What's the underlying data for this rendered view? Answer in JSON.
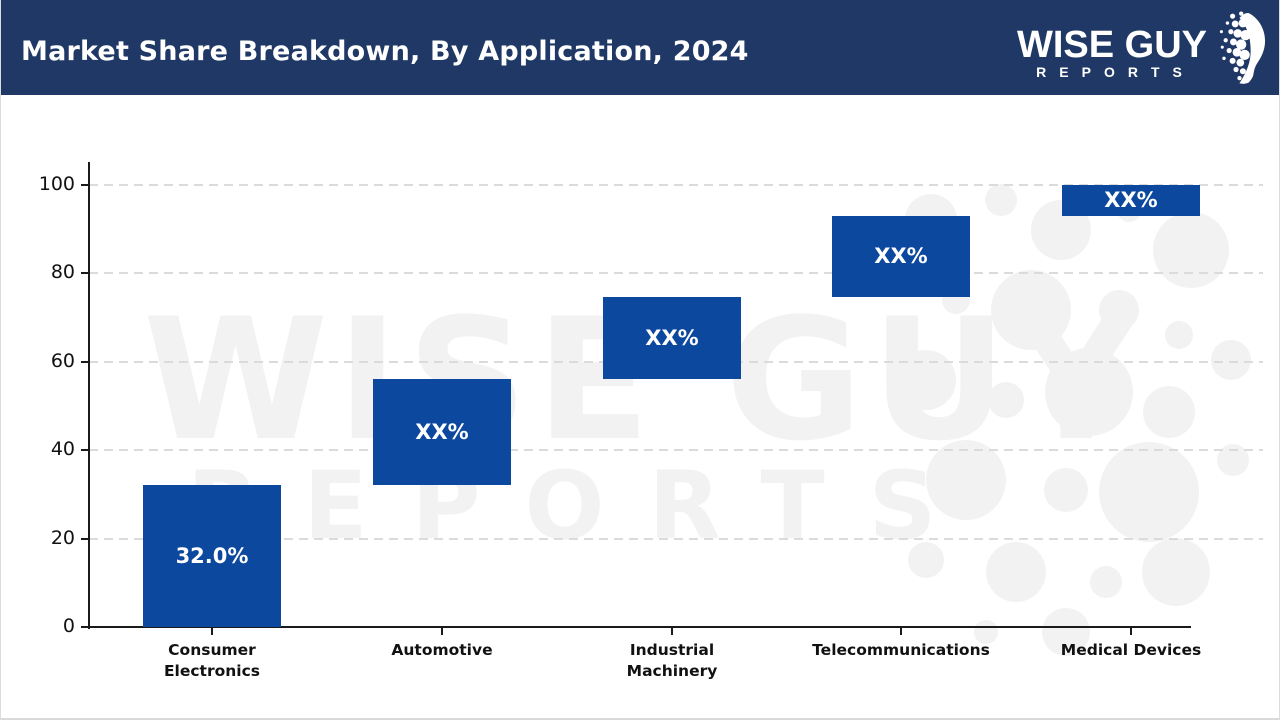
{
  "header": {
    "title": "Market Share Breakdown, By Application, 2024",
    "logo": {
      "line1": "WISE GUY",
      "line2": "REPORTS"
    }
  },
  "watermark": {
    "line1": "WISE GUY",
    "line2": "REPORTS"
  },
  "colors": {
    "header_bg": "#1F3865",
    "bar": "#0C489E",
    "bar_label": "#FFFFFF",
    "grid": "#DBDBDB",
    "axis": "#1A1A1A",
    "watermark": "#F2F2F2",
    "title_text": "#FFFFFF"
  },
  "chart_data": {
    "type": "bar",
    "subtype": "waterfall",
    "title": "Market Share Breakdown, By Application, 2024",
    "categories": [
      "Consumer Electronics",
      "Automotive",
      "Industrial Machinery",
      "Telecommunications",
      "Medical Devices"
    ],
    "categories_lines": [
      "Consumer\nElectronics",
      "Automotive",
      "Industrial\nMachinery",
      "Telecommunications",
      "Medical Devices"
    ],
    "segments": [
      {
        "category": "Consumer Electronics",
        "start": 0,
        "end": 32,
        "size": 32,
        "label": "32.0%"
      },
      {
        "category": "Automotive",
        "start": 32,
        "end": 56,
        "size": 24,
        "label": "XX%"
      },
      {
        "category": "Industrial Machinery",
        "start": 56,
        "end": 74.5,
        "size": 18.5,
        "label": "XX%"
      },
      {
        "category": "Telecommunications",
        "start": 74.5,
        "end": 93,
        "size": 18.5,
        "label": "XX%"
      },
      {
        "category": "Medical Devices",
        "start": 93,
        "end": 100,
        "size": 7,
        "label": "XX%"
      }
    ],
    "yticks": [
      0,
      20,
      40,
      60,
      80,
      100
    ],
    "ylim": [
      0,
      105
    ],
    "xlabel": "",
    "ylabel": "",
    "grid": "dashed-horizontal",
    "legend": "none"
  }
}
